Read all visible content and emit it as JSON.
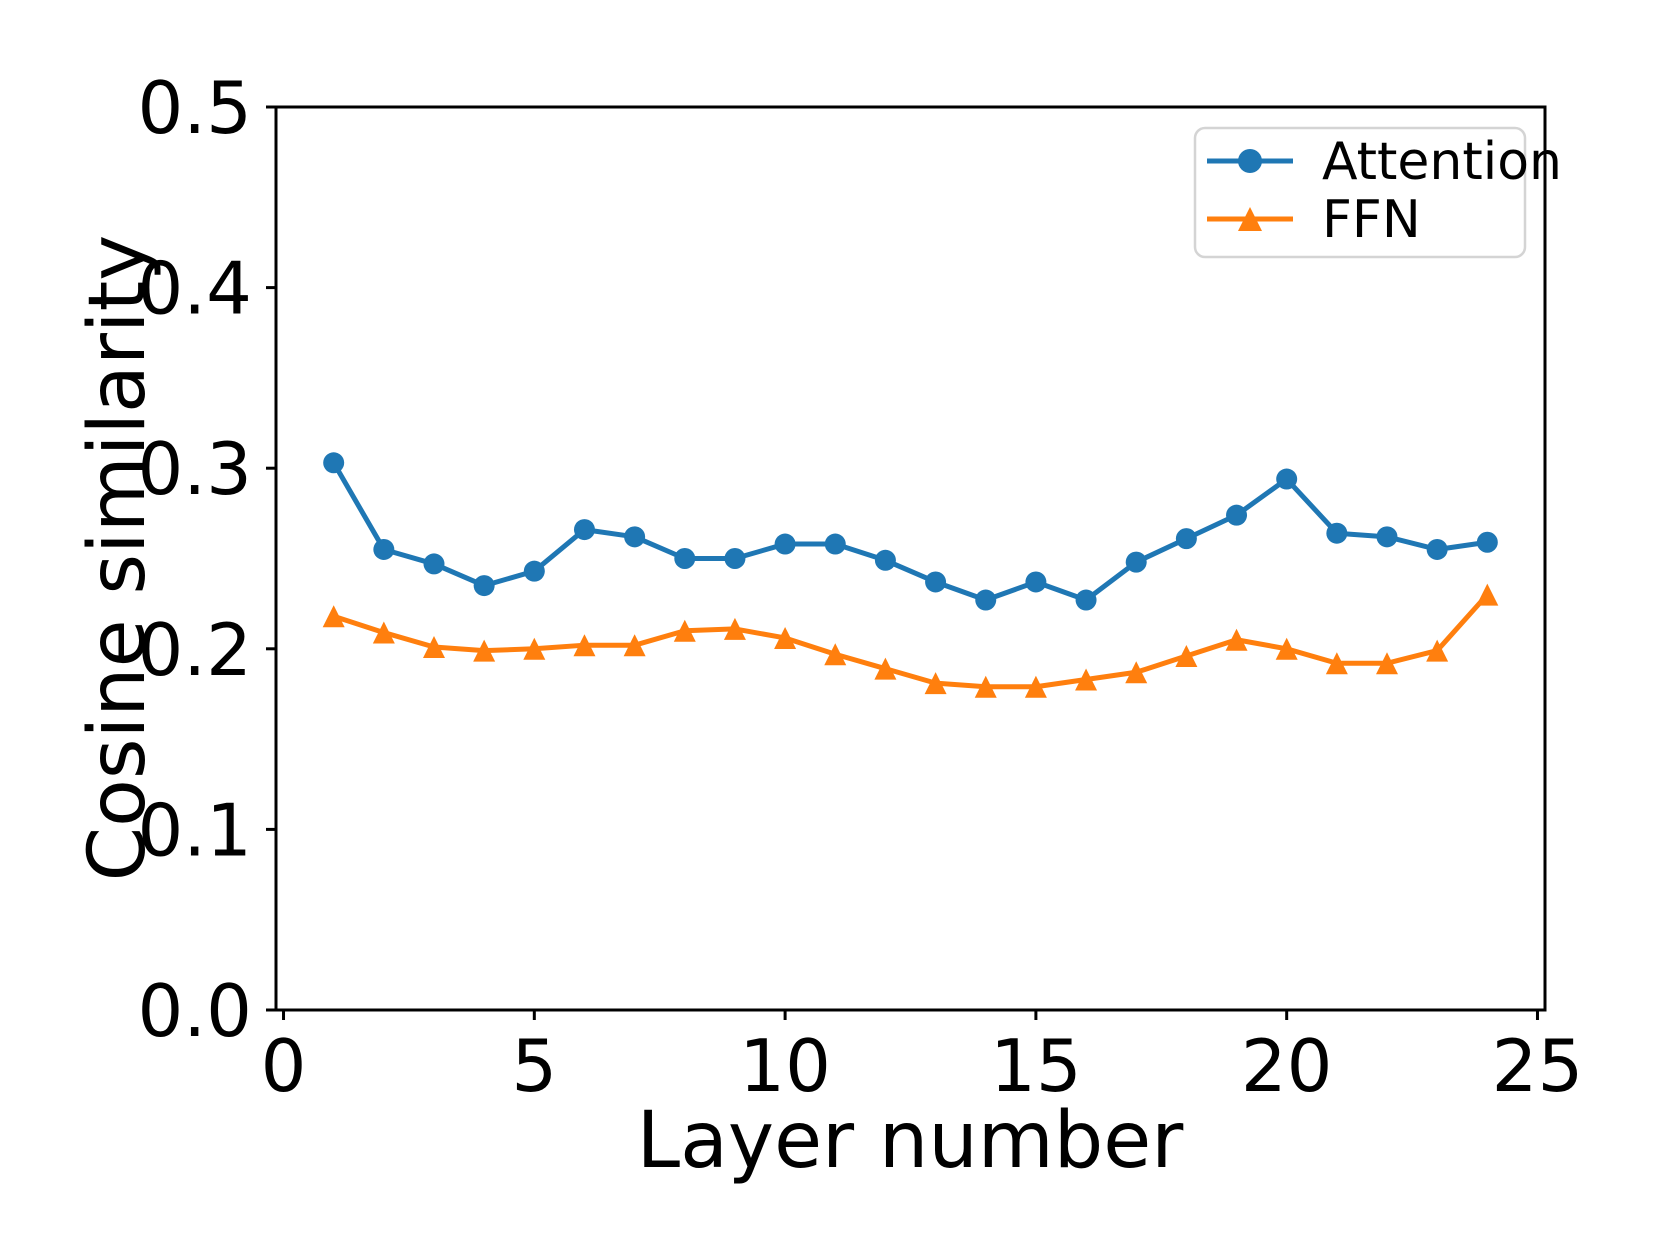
{
  "figure": {
    "background": "#ffffff"
  },
  "chart_data": {
    "type": "line",
    "title": "",
    "xlabel": "Layer number",
    "ylabel": "Cosine similarity",
    "x": [
      1,
      2,
      3,
      4,
      5,
      6,
      7,
      8,
      9,
      10,
      11,
      12,
      13,
      14,
      15,
      16,
      17,
      18,
      19,
      20,
      21,
      22,
      23,
      24
    ],
    "series": [
      {
        "name": "Attention",
        "color": "#1f77b4",
        "marker": "circle",
        "values": [
          0.303,
          0.255,
          0.247,
          0.235,
          0.243,
          0.266,
          0.262,
          0.25,
          0.25,
          0.258,
          0.258,
          0.249,
          0.237,
          0.227,
          0.237,
          0.227,
          0.248,
          0.261,
          0.274,
          0.294,
          0.264,
          0.262,
          0.255,
          0.259
        ]
      },
      {
        "name": "FFN",
        "color": "#ff7f0e",
        "marker": "triangle-up",
        "values": [
          0.218,
          0.209,
          0.201,
          0.199,
          0.2,
          0.202,
          0.202,
          0.21,
          0.211,
          0.206,
          0.197,
          0.189,
          0.181,
          0.179,
          0.179,
          0.183,
          0.187,
          0.196,
          0.205,
          0.2,
          0.192,
          0.192,
          0.199,
          0.23
        ]
      }
    ],
    "xlim": [
      -0.15,
      25.15
    ],
    "ylim": [
      0.0,
      0.5
    ],
    "xticks": {
      "values": [
        0,
        5,
        10,
        15,
        20,
        25
      ],
      "labels": [
        "0",
        "5",
        "10",
        "15",
        "20",
        "25"
      ]
    },
    "yticks": {
      "values": [
        0.0,
        0.1,
        0.2,
        0.3,
        0.4,
        0.5
      ],
      "labels": [
        "0.0",
        "0.1",
        "0.2",
        "0.3",
        "0.4",
        "0.5"
      ]
    },
    "grid": false,
    "legend": {
      "position": "upper right",
      "border_color": "#d4d4d4",
      "background": "#ffffff"
    },
    "axis_color": "#000000"
  }
}
